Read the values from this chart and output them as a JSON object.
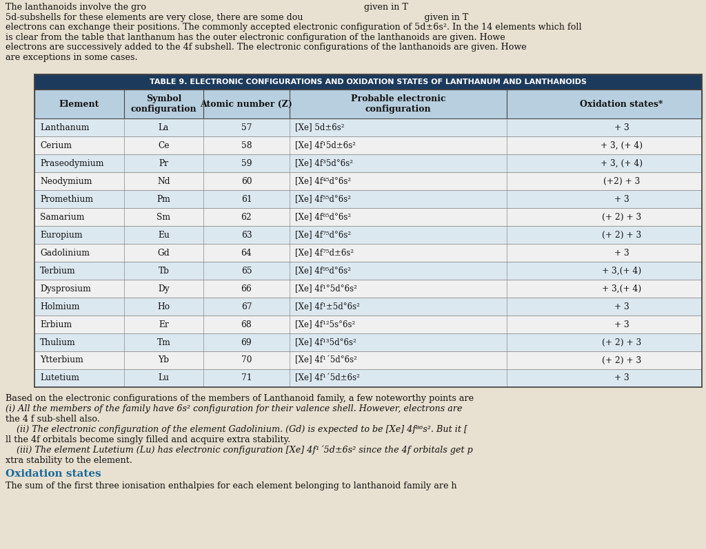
{
  "title_text": "TABLE 9. ELECTRONIC CONFIGURATIONS AND OXIDATION STATES OF LANTHANUM AND LANTHANOIDS",
  "col_headers": [
    "Element",
    "Symbol\nconfiguration",
    "Atomic number (Z)",
    "Probable electronic\nconfiguration",
    "Oxidation states*"
  ],
  "elements": [
    "Lanthanum",
    "Cerium",
    "Praseodymium",
    "Neodymium",
    "Promethium",
    "Samarium",
    "Europium",
    "Gadolinium",
    "Terbium",
    "Dysprosium",
    "Holmium",
    "Erbium",
    "Thulium",
    "Ytterbium",
    "Lutetium"
  ],
  "symbols": [
    "La",
    "Ce",
    "Pr",
    "Nd",
    "Pm",
    "Sm",
    "Eu",
    "Gd",
    "Tb",
    "Dy",
    "Ho",
    "Er",
    "Tm",
    "Yb",
    "Lu"
  ],
  "atomic_nums": [
    57,
    58,
    59,
    60,
    61,
    62,
    63,
    64,
    65,
    66,
    67,
    68,
    69,
    70,
    71
  ],
  "elec_configs": [
    "[Xe] 5d±6s²",
    "[Xe] 4f¹5d±6s²",
    "[Xe] 4f³5d°6s²",
    "[Xe] 4f⁴⁵d°6s²",
    "[Xe] 4f⁵⁵d°6s²",
    "[Xe] 4f⁶⁵d°6s²",
    "[Xe] 4f⁷⁵d°6s²",
    "[Xe] 4f⁷⁵d±6s²",
    "[Xe] 4f⁹⁵d°6s²",
    "[Xe] 4f¹°5d°6s²",
    "[Xe] 4f¹±5d°6s²",
    "[Xe] 4f¹²5s°6s²",
    "[Xe] 4f¹³5d°6s²",
    "[Xe] 4f¹´5d°6s²",
    "[Xe] 4f¹´5d±6s²"
  ],
  "oxidation_states": [
    "+ 3",
    "+ 3, (+ 4)",
    "+ 3, (+ 4)",
    "(+2) + 3",
    "+ 3",
    "(+ 2) + 3",
    "(+ 2) + 3",
    "+ 3",
    "+ 3,(+ 4)",
    "+ 3,(+ 4)",
    "+ 3",
    "+ 3",
    "(+ 2) + 3",
    "(+ 2) + 3",
    "+ 3"
  ],
  "bg_color": "#e8e0d0",
  "title_bg": "#1c3a5c",
  "title_fg": "#ffffff",
  "header_bg": "#b8cfe0",
  "row_bg_a": "#dce8f0",
  "row_bg_b": "#f0f0f0",
  "border_dark": "#444444",
  "border_light": "#888888",
  "text_dark": "#111111",
  "top_lines": [
    "The lanthanoids involve the gro                                                                               given in T",
    "5d-subshells for these elements are very close, there are some dou                                            given in T",
    "electrons can exchange their positions. The commonly accepted electronic configuration of 5d±6s². In the 14 elements which foll",
    "is clear from the table that lanthanum has the outer electronic configuration of the lanthanoids are given. Howe",
    "electrons are successively added to the 4f subshell. The electronic configurations of the lanthanoids are given. Howe",
    "are exceptions in some cases."
  ],
  "bottom_lines": [
    "Based on the electronic configurations of the members of Lanthanoid family, a few noteworthy points are",
    "(i) All the members of the family have 6s² configuration for their valence shell. However, electrons are",
    "the 4 f sub-shell also.",
    "    (ii) The electronic configuration of the element Gadolinium. (Gd) is expected to be [Xe] 4f⁸⁶s². But it [",
    "ll the 4f orbitals become singly filled and acquire extra stability.",
    "    (iii) The element Lutetium (Lu) has electronic configuration [Xe] 4f¹´5d±6s² since the 4f orbitals get p",
    "xtra stability to the element."
  ],
  "ox_heading": "Oxidation states",
  "ox_heading_color": "#1a6b9a",
  "ox_text": "The sum of the first three ionisation enthalpies for each element belonging to lanthanoid family are h"
}
